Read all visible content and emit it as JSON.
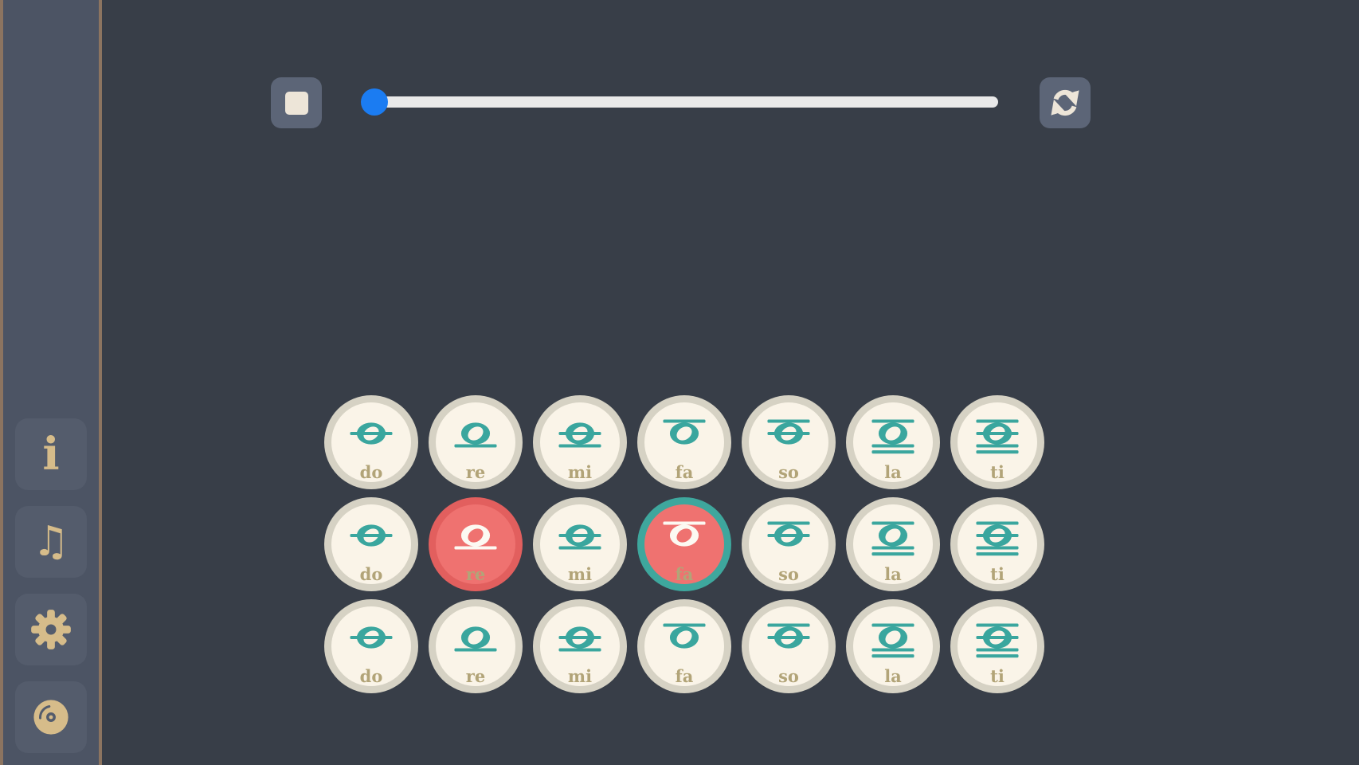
{
  "app": {
    "description": "solfege ear-training interface"
  },
  "colors": {
    "background": "#383E48",
    "sidebar": "#4C5464",
    "sidebar_border": "#8C7460",
    "sidebar_button": "#545C6C",
    "sidebar_icon": "#D6BC8A",
    "control_button": "#5C6577",
    "control_glyph": "#EDE5D8",
    "slider_track": "#E9E9E9",
    "slider_thumb": "#1B7CF2",
    "note_ring": "#D6D2C4",
    "note_face": "#FAF4E8",
    "note_glyph_teal": "#3AA69E",
    "note_label_tan": "#B2A478",
    "red_ring": "#E25F5E",
    "red_face": "#EF7270",
    "red_glyph_white": "#FCF9F2",
    "active_teal_ring": "#3EA79D"
  },
  "sidebar": {
    "items": [
      {
        "id": "info",
        "icon": "info-icon"
      },
      {
        "id": "music",
        "icon": "music-note-icon"
      },
      {
        "id": "settings",
        "icon": "gear-icon"
      },
      {
        "id": "playback",
        "icon": "disc-icon"
      }
    ]
  },
  "transport": {
    "stop_button": "stop",
    "refresh_button": "replay",
    "progress_percent": 0
  },
  "solfege": {
    "labels": [
      "do",
      "re",
      "mi",
      "fa",
      "so",
      "la",
      "ti"
    ],
    "glyphs": {
      "do": [
        "center"
      ],
      "re": [
        "bottom"
      ],
      "mi": [
        "center",
        "bottom"
      ],
      "fa": [
        "top"
      ],
      "so": [
        "top",
        "center"
      ],
      "la": [
        "top",
        "bottom",
        "bottom2"
      ],
      "ti": [
        "top",
        "center",
        "bottom",
        "bottom2"
      ]
    },
    "rows": [
      {
        "buttons": [
          {
            "note": "do",
            "state": "default"
          },
          {
            "note": "re",
            "state": "default"
          },
          {
            "note": "mi",
            "state": "default"
          },
          {
            "note": "fa",
            "state": "default"
          },
          {
            "note": "so",
            "state": "default"
          },
          {
            "note": "la",
            "state": "default"
          },
          {
            "note": "ti",
            "state": "default"
          }
        ]
      },
      {
        "buttons": [
          {
            "note": "do",
            "state": "default"
          },
          {
            "note": "re",
            "state": "red"
          },
          {
            "note": "mi",
            "state": "default"
          },
          {
            "note": "fa",
            "state": "red-active"
          },
          {
            "note": "so",
            "state": "default"
          },
          {
            "note": "la",
            "state": "default"
          },
          {
            "note": "ti",
            "state": "default"
          }
        ]
      },
      {
        "buttons": [
          {
            "note": "do",
            "state": "default"
          },
          {
            "note": "re",
            "state": "default"
          },
          {
            "note": "mi",
            "state": "default"
          },
          {
            "note": "fa",
            "state": "default"
          },
          {
            "note": "so",
            "state": "default"
          },
          {
            "note": "la",
            "state": "default"
          },
          {
            "note": "ti",
            "state": "default"
          }
        ]
      }
    ]
  }
}
